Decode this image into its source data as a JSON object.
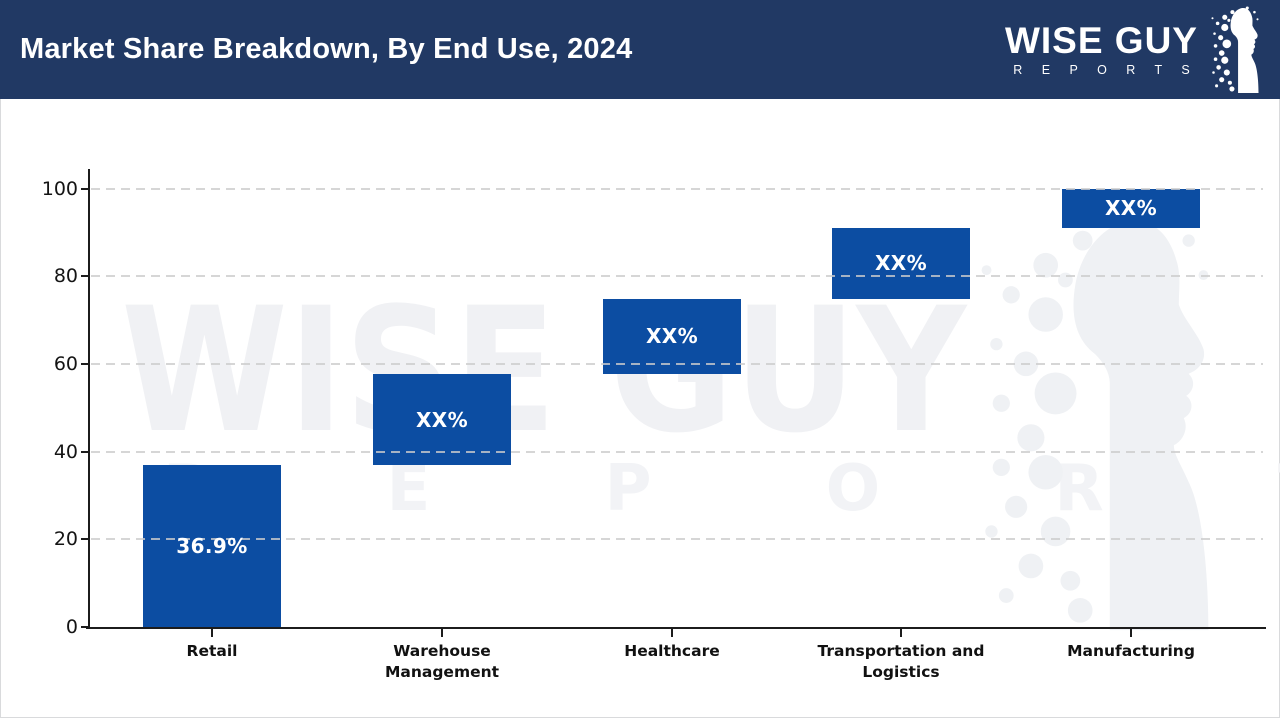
{
  "header": {
    "title": "Market Share Breakdown, By End Use, 2024",
    "bg_color": "#213964",
    "logo": {
      "wordmark": "WISE GUY",
      "reports": "R E P O R T S"
    }
  },
  "watermark": {
    "wordmark": "WISE GUY",
    "reports": "R E P O R T S"
  },
  "chart_data": {
    "type": "bar",
    "subtype": "waterfall",
    "title": "Market Share Breakdown, By End Use, 2024",
    "xlabel": "",
    "ylabel": "",
    "ylim": [
      0,
      104
    ],
    "yticks": [
      0,
      20,
      40,
      60,
      80,
      100
    ],
    "grid": "horizontal-dashed",
    "legend": "none",
    "bar_color": "#0c4da2",
    "bar_label_color": "#ffffff",
    "axis_color": "#1c1c1c",
    "gridline_color": "#cccccc",
    "categories": [
      "Retail",
      "Warehouse Management",
      "Healthcare",
      "Transportation and Logistics",
      "Manufacturing"
    ],
    "category_lines": [
      [
        "Retail"
      ],
      [
        "Warehouse",
        "Management"
      ],
      [
        "Healthcare"
      ],
      [
        "Transportation and",
        "Logistics"
      ],
      [
        "Manufacturing"
      ]
    ],
    "segments": [
      {
        "category": "Retail",
        "start": 0,
        "end": 36.9,
        "value": 36.9,
        "label": "36.9%"
      },
      {
        "category": "Warehouse Management",
        "start": 36.9,
        "end": 57.6,
        "value": 20.7,
        "label": "XX%"
      },
      {
        "category": "Healthcare",
        "start": 57.6,
        "end": 74.9,
        "value": 17.3,
        "label": "XX%"
      },
      {
        "category": "Transportation and Logistics",
        "start": 74.9,
        "end": 90.9,
        "value": 16.0,
        "label": "XX%"
      },
      {
        "category": "Manufacturing",
        "start": 90.9,
        "end": 100.0,
        "value": 9.1,
        "label": "XX%"
      }
    ]
  }
}
